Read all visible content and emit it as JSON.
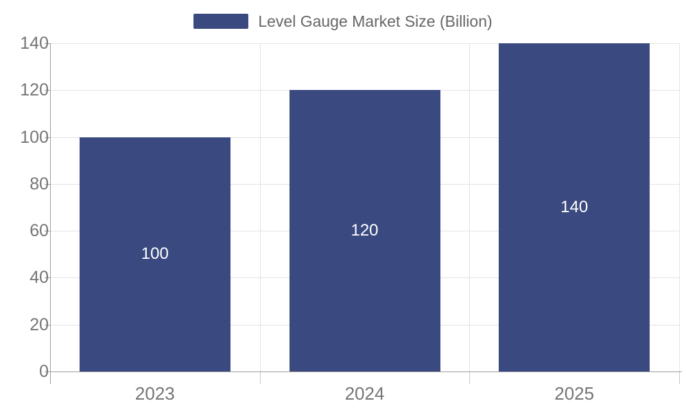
{
  "chart_data": {
    "type": "bar",
    "title": "Level Gauge Market Size (Billion)",
    "legend": {
      "position": "top",
      "entries": [
        {
          "label": "Level Gauge Market Size (Billion)",
          "color": "#3A4A80"
        }
      ]
    },
    "categories": [
      "2023",
      "2024",
      "2025"
    ],
    "series": [
      {
        "name": "Level Gauge Market Size (Billion)",
        "values": [
          100,
          120,
          140
        ]
      }
    ],
    "bar_labels": [
      "100",
      "120",
      "140"
    ],
    "xlabel": "",
    "ylabel": "",
    "ylim": [
      0,
      140
    ],
    "yticks": [
      0,
      20,
      40,
      60,
      80,
      100,
      120,
      140
    ],
    "grid": true,
    "colors": {
      "bar_fill": "#3A4A80",
      "bar_value_text": "#FFFFFF",
      "legend_text": "#666666",
      "axis_tick_text": "#757575",
      "gridline": "#E3E3E3",
      "axis_line": "#9E9E9E",
      "boundary_tick": "#C9C9C9",
      "background": "#FFFFFF"
    }
  }
}
